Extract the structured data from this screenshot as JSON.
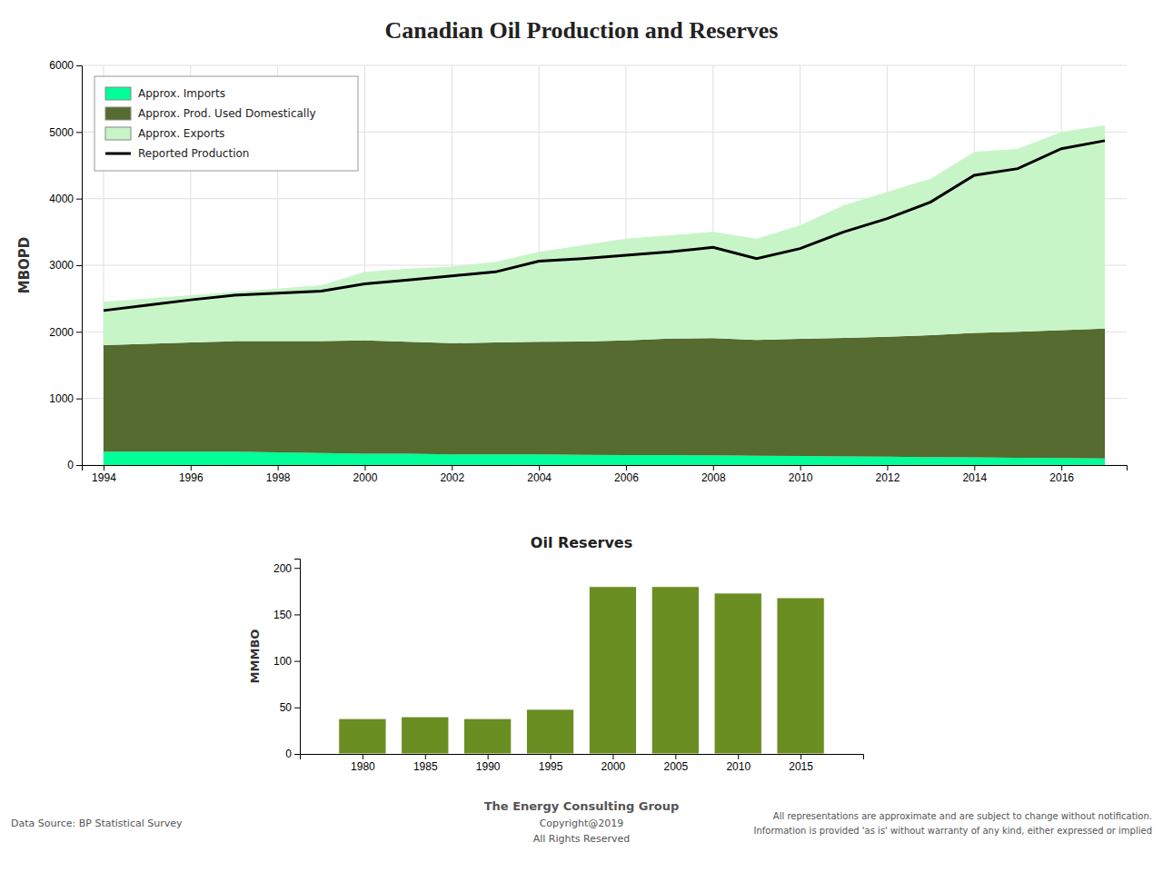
{
  "chart_data": [
    {
      "type": "area",
      "title": "Canadian Oil Production and Reserves",
      "ylabel": "MBOPD",
      "x": [
        1994,
        1995,
        1996,
        1997,
        1998,
        1999,
        2000,
        2001,
        2002,
        2003,
        2004,
        2005,
        2006,
        2007,
        2008,
        2009,
        2010,
        2011,
        2012,
        2013,
        2014,
        2015,
        2016,
        2017
      ],
      "xlim": [
        1993.5,
        2017.5
      ],
      "xticks": [
        1994,
        1996,
        1998,
        2000,
        2002,
        2004,
        2006,
        2008,
        2010,
        2012,
        2014,
        2016
      ],
      "ylim": [
        0,
        6000
      ],
      "yticks": [
        0,
        1000,
        2000,
        3000,
        4000,
        5000,
        6000
      ],
      "grid": true,
      "stacked": true,
      "legend": "upper left",
      "series": [
        {
          "name": "Approx. Imports",
          "color": "#00FF99",
          "values": [
            200,
            200,
            200,
            200,
            190,
            180,
            170,
            170,
            160,
            160,
            160,
            155,
            150,
            150,
            145,
            140,
            135,
            130,
            125,
            120,
            115,
            110,
            105,
            100
          ]
        },
        {
          "name": "Approx. Prod. Used Domestically",
          "color": "#556B2F",
          "values": [
            1600,
            1620,
            1640,
            1660,
            1670,
            1680,
            1700,
            1680,
            1670,
            1680,
            1690,
            1700,
            1720,
            1750,
            1760,
            1740,
            1760,
            1780,
            1800,
            1830,
            1870,
            1890,
            1920,
            1950
          ]
        },
        {
          "name": "Approx. Exports",
          "color": "#C8F5C8",
          "values": [
            650,
            680,
            710,
            740,
            790,
            840,
            1030,
            1100,
            1150,
            1210,
            1350,
            1445,
            1530,
            1550,
            1595,
            1520,
            1705,
            1990,
            2175,
            2350,
            2715,
            2750,
            2975,
            3050
          ]
        },
        {
          "name": "Reported Production",
          "type": "line",
          "color": "black",
          "values": [
            2320,
            2400,
            2480,
            2550,
            2580,
            2610,
            2720,
            2780,
            2840,
            2900,
            3060,
            3100,
            3150,
            3200,
            3270,
            3100,
            3250,
            3500,
            3700,
            3950,
            4350,
            4450,
            4750,
            4870
          ]
        }
      ],
      "annotations": [
        "The Energy Consulting Group",
        "Copyright@2019",
        "All Rights Reserved",
        "Data Source: BP Statistical Survey",
        "All representations are approximate and are subject to change without notification.",
        "Information is provided 'as is' without warranty of any kind, either expressed or implied"
      ]
    },
    {
      "type": "bar",
      "title": "Oil Reserves",
      "ylabel": "MMMBO",
      "x": [
        1980,
        1985,
        1990,
        1995,
        2000,
        2005,
        2010,
        2015
      ],
      "values": [
        38,
        40,
        38,
        48,
        180,
        180,
        173,
        168
      ],
      "color": "#6B8E23",
      "xlim": [
        1975,
        2020
      ],
      "xticks": [
        1980,
        1985,
        1990,
        1995,
        2000,
        2005,
        2010,
        2015
      ],
      "ylim": [
        0,
        210
      ],
      "yticks": [
        0,
        50,
        100,
        150,
        200
      ],
      "grid": false
    }
  ]
}
